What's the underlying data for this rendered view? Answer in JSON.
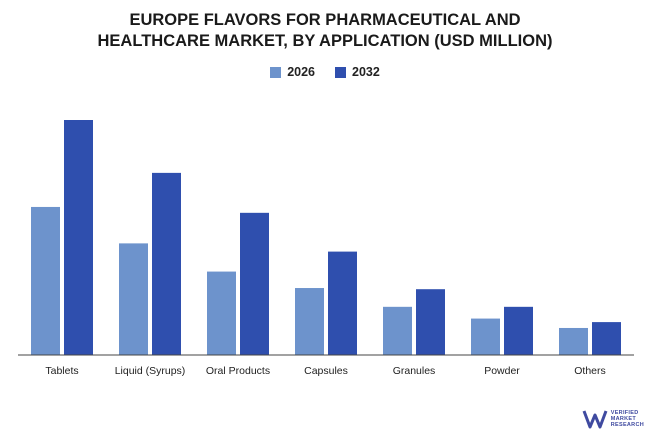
{
  "chart_data": {
    "type": "bar",
    "title_lines": [
      "EUROPE FLAVORS FOR PHARMACEUTICAL AND",
      "HEALTHCARE MARKET, BY APPLICATION (USD MILLION)"
    ],
    "categories": [
      "Tablets",
      "Liquid (Syrups)",
      "Oral Products",
      "Capsules",
      "Granules",
      "Powder",
      "Others"
    ],
    "series": [
      {
        "name": "2026",
        "color": "#6d93cc",
        "values": [
          63,
          47.5,
          35.5,
          28.5,
          20.5,
          15.5,
          11.5
        ]
      },
      {
        "name": "2032",
        "color": "#2f4fae",
        "values": [
          100,
          77.5,
          60.5,
          44,
          28,
          20.5,
          14
        ]
      }
    ],
    "ylim": [
      0,
      100
    ],
    "grid": false,
    "legend_position": "top-center"
  },
  "brand": {
    "logo_icon": "verified-market-research-logo",
    "lines": [
      "VERIFIED",
      "MARKET",
      "RESEARCH"
    ],
    "color": "#3f4aa0"
  }
}
